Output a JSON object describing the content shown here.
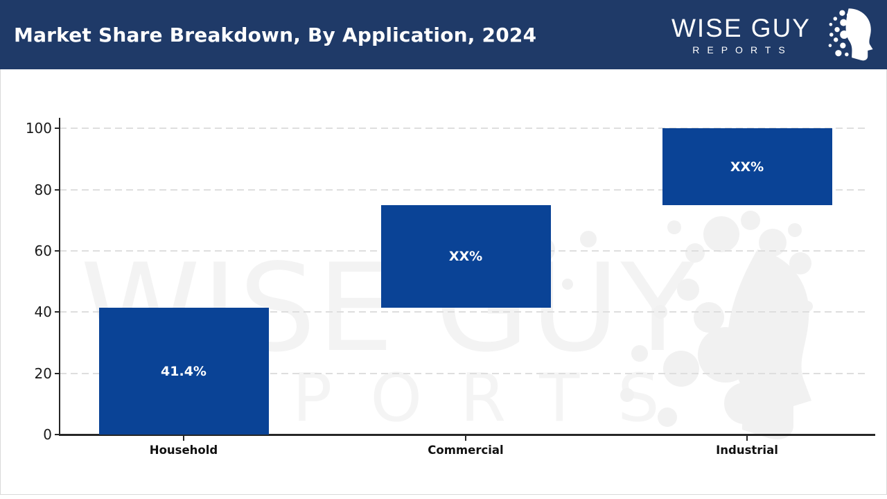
{
  "header": {
    "title": "Market Share Breakdown, By Application, 2024",
    "logo": {
      "line1": "WISE GUY",
      "line2": "REPORTS"
    }
  },
  "watermark": {
    "line1": "WISE GUY",
    "line2": "REPORTS"
  },
  "chart_data": {
    "type": "bar",
    "variant": "waterfall",
    "title": "Market Share Breakdown, By Application, 2024",
    "categories": [
      "Household",
      "Commercial",
      "Industrial"
    ],
    "bars": [
      {
        "category": "Household",
        "start": 0,
        "end": 41.4,
        "label": "41.4%"
      },
      {
        "category": "Commercial",
        "start": 41.4,
        "end": 75,
        "label": "XX%"
      },
      {
        "category": "Industrial",
        "start": 75,
        "end": 100,
        "label": "XX%"
      }
    ],
    "yticks": [
      0,
      20,
      40,
      60,
      80,
      100
    ],
    "ylim": [
      0,
      103.5
    ],
    "xlabel": "",
    "ylabel": "",
    "grid": true,
    "legend": false,
    "bar_color": "#0a4396",
    "bar_label_color": "#ffffff",
    "axis_color": "#262626",
    "grid_color": "#dedede",
    "tick_label_color": "#1a1a1a"
  },
  "colors": {
    "header_bg": "#1f3a68",
    "card_border": "#d9d9d9",
    "watermark": "#f3f3f3"
  }
}
